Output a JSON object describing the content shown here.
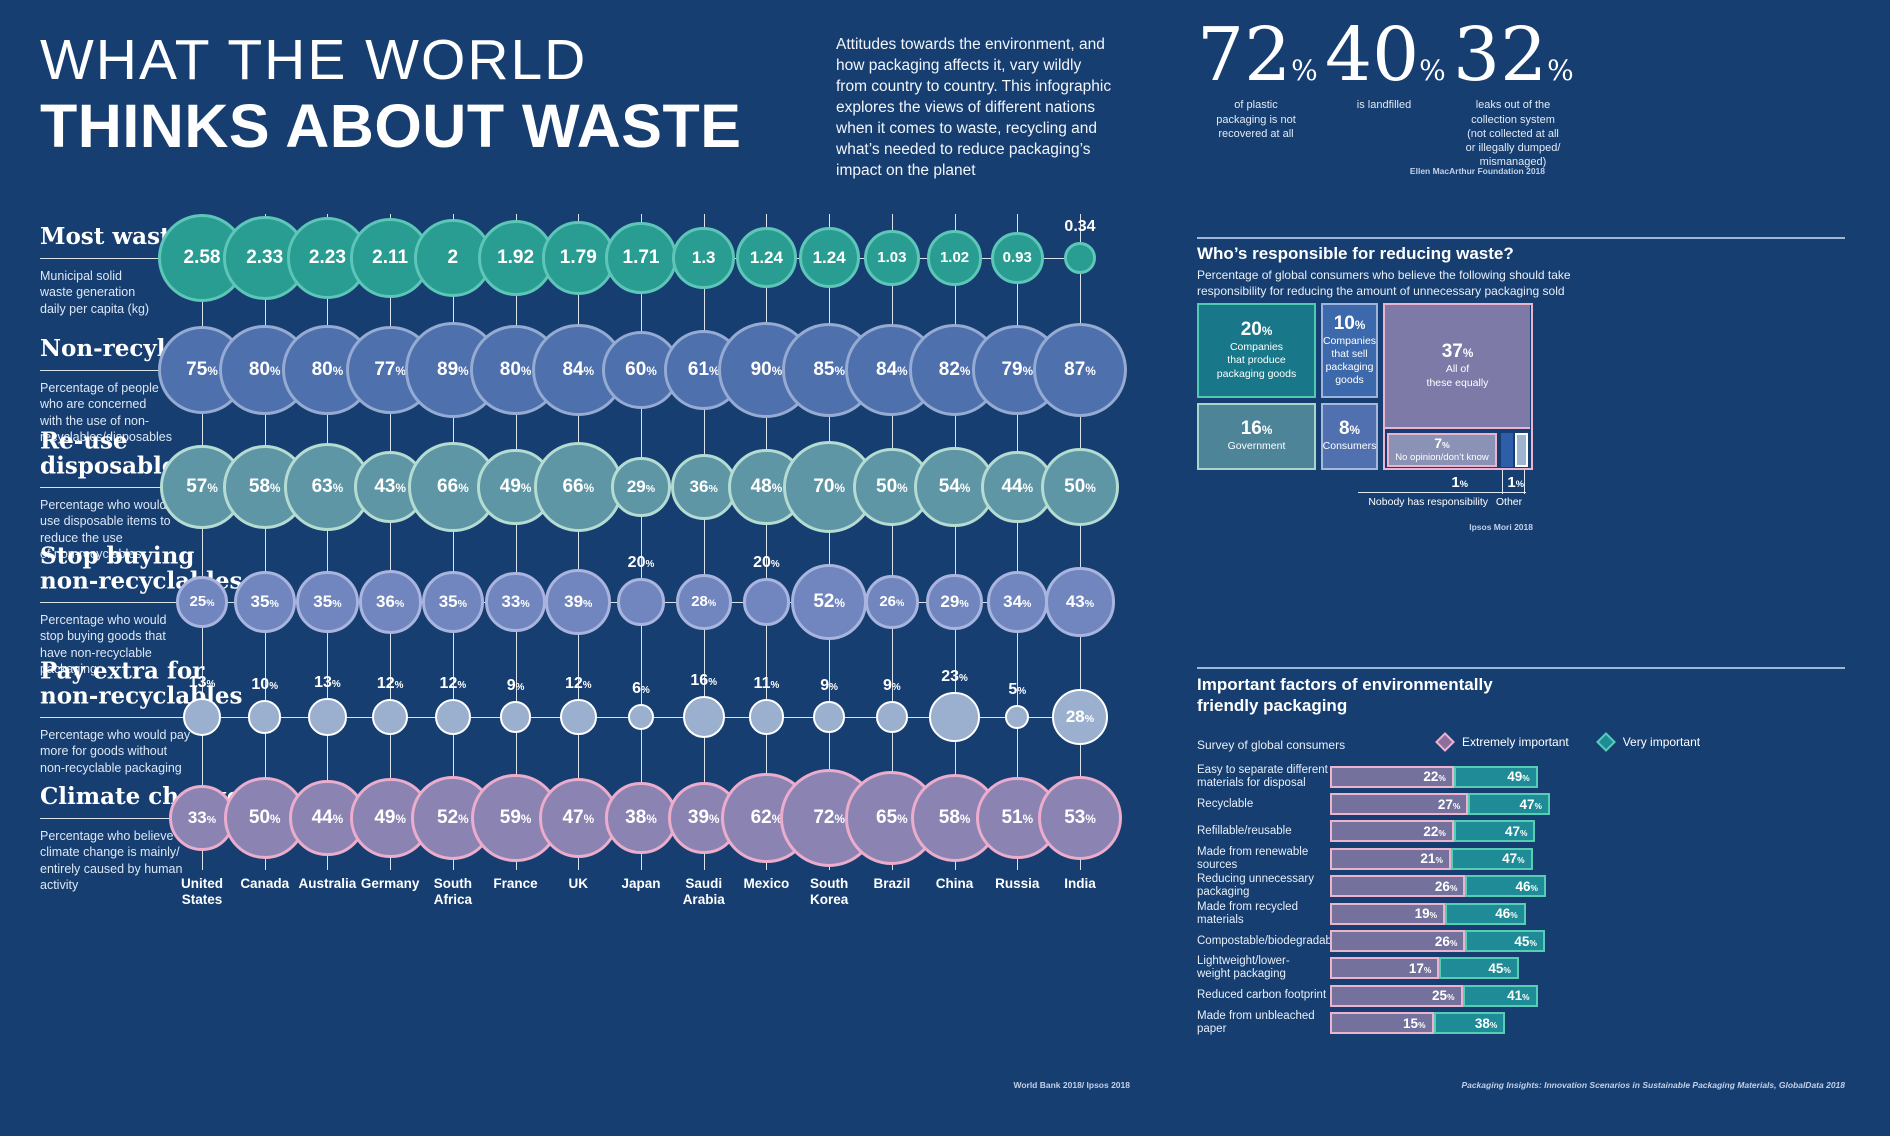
{
  "title": {
    "line1": "WHAT THE WORLD",
    "line2": "THINKS ABOUT WASTE"
  },
  "intro": "Attitudes towards the environment, and\nhow packaging affects it, vary wildly\nfrom country to country. This infographic\nexplores the views of different nations\nwhen it comes to waste, recycling and\nwhat’s needed to reduce packaging’s\nimpact on the planet",
  "theme": {
    "background": "#163E70",
    "text": "#FFFFFF",
    "divider": "#9FB6D6",
    "grid_line": "#FFFFFF"
  },
  "key_stats": {
    "source": "Ellen MacArthur Foundation 2018",
    "items": [
      {
        "value": "72",
        "unit": "%",
        "caption": "of plastic\npackaging is not\nrecovered at all"
      },
      {
        "value": "40",
        "unit": "%",
        "caption": "is landfilled"
      },
      {
        "value": "32",
        "unit": "%",
        "caption": "leaks out of the\ncollection system\n(not collected at all\nor illegally dumped/\nmismanaged)"
      }
    ]
  },
  "main_chart": {
    "source": "World Bank 2018/ Ipsos 2018"
  },
  "responsibility": {
    "title": "Who’s responsible for reducing waste?",
    "subtitle": "Percentage of global consumers who believe the following should take\nresponsibility for reducing the amount of unnecessary packaging sold",
    "source": "Ipsos Mori 2018"
  },
  "factors": {
    "title": "Important factors of environmentally\nfriendly packaging",
    "subtitle": "Survey of global consumers",
    "source": "Packaging Insights: Innovation Scenarios in Sustainable Packaging Materials, GlobalData 2018",
    "legend": [
      {
        "label": "Extremely important",
        "fill": "#8E6E9E",
        "border": "#ECB3CF"
      },
      {
        "label": "Very important",
        "fill": "#1E8B96",
        "border": "#58CDB5"
      }
    ]
  },
  "chart_data": [
    {
      "type": "scatter",
      "subtype": "bubble-matrix",
      "categories": [
        "United States",
        "Canada",
        "Australia",
        "Germany",
        "South Africa",
        "France",
        "UK",
        "Japan",
        "Saudi Arabia",
        "Mexico",
        "South Korea",
        "Brazil",
        "China",
        "Russia",
        "India"
      ],
      "series": [
        {
          "key": "most_waste",
          "name": "Most waste",
          "name_display": "Most waste",
          "description": "Municipal solid\nwaste generation\ndaily per capita (kg)",
          "unit": "",
          "values": [
            2.58,
            2.33,
            2.23,
            2.11,
            2,
            1.92,
            1.79,
            1.71,
            1.3,
            1.24,
            1.24,
            1.03,
            1.02,
            0.93,
            0.34
          ],
          "value_labels": [
            "2.58",
            "2.33",
            "2.23",
            "2.11",
            "2",
            "1.92",
            "1.79",
            "1.71",
            "1.3",
            "1.24",
            "1.24",
            "1.03",
            "1.02",
            "0.93",
            "0.34"
          ],
          "labels_above": [
            14
          ],
          "fill": "#2A9D92",
          "border": "#5EC6B8"
        },
        {
          "key": "non_recyclables",
          "name": "Non-recylables",
          "name_display": "Non-recylables",
          "description": "Percentage of people\nwho are concerned\nwith the use of non-\nrecyclables/disposables",
          "unit": "%",
          "values": [
            75,
            80,
            80,
            77,
            89,
            80,
            84,
            60,
            61,
            90,
            85,
            84,
            82,
            79,
            87
          ],
          "labels_above": [],
          "fill": "#4E70AC",
          "border": "#96ABD3"
        },
        {
          "key": "reuse_disposables",
          "name": "Re-use disposables",
          "name_display": "Re-use\ndisposables",
          "description": "Percentage who would re-\nuse disposable items to\nreduce the use\nof non-recyclables",
          "unit": "%",
          "values": [
            57,
            58,
            63,
            43,
            66,
            49,
            66,
            29,
            36,
            48,
            70,
            50,
            54,
            44,
            50
          ],
          "labels_above": [],
          "fill": "#5E96A6",
          "border": "#B5DCD2"
        },
        {
          "key": "stop_buying",
          "name": "Stop buying non-recyclables",
          "name_display": "Stop buying\nnon-recyclables",
          "description": "Percentage who would\nstop buying goods that\nhave non-recyclable\npackaging",
          "unit": "%",
          "values": [
            25,
            35,
            35,
            36,
            35,
            33,
            39,
            20,
            28,
            20,
            52,
            26,
            29,
            34,
            43
          ],
          "labels_above": [
            7,
            9
          ],
          "fill": "#7186BF",
          "border": "#A9B5DF"
        },
        {
          "key": "pay_extra",
          "name": "Pay extra for non-recyclables",
          "name_display": "Pay extra for\nnon-recyclables",
          "description": "Percentage who would pay\nmore for goods without\nnon-recyclable packaging",
          "unit": "%",
          "values": [
            13,
            10,
            13,
            12,
            12,
            9,
            12,
            6,
            16,
            11,
            9,
            9,
            23,
            5,
            28
          ],
          "labels_above": [
            0,
            1,
            2,
            3,
            4,
            5,
            6,
            7,
            8,
            9,
            10,
            11,
            12,
            13
          ],
          "fill": "#9BB0CF",
          "border": "#FFFFFF"
        },
        {
          "key": "climate_change",
          "name": "Climate change",
          "name_display": "Climate change",
          "description": "Percentage who believe\nclimate change is mainly/\nentirely caused by human\nactivity",
          "unit": "%",
          "values": [
            33,
            50,
            44,
            49,
            52,
            59,
            47,
            38,
            39,
            62,
            72,
            65,
            58,
            51,
            53
          ],
          "labels_above": [],
          "fill": "#8B84B3",
          "border": "#ECACCC"
        }
      ]
    },
    {
      "type": "pie",
      "subtype": "treemap",
      "title": "Who’s responsible for reducing waste?",
      "slices": [
        {
          "key": "produce",
          "value": 20,
          "label": "Companies\nthat produce\npackaging goods",
          "fill": "#187788",
          "border": "#4FCBB1"
        },
        {
          "key": "sell",
          "value": 10,
          "label": "Companies\nthat sell\npackaging\ngoods",
          "fill": "#3C68AC",
          "border": "#9DB3DB"
        },
        {
          "key": "government",
          "value": 16,
          "label": "Government",
          "fill": "#4E8497",
          "border": "#A8D5CC"
        },
        {
          "key": "consumers",
          "value": 8,
          "label": "Consumers",
          "fill": "#5170B0",
          "border": "#A8B8DC"
        },
        {
          "key": "equally",
          "value": 37,
          "label": "All of\nthese equally",
          "fill": "#7D7AA8",
          "border": "#ECB3CF"
        },
        {
          "key": "noopinion",
          "value": 7,
          "label": "No opinion/don’t know",
          "fill": "#8A92B5",
          "border": "#ECB3CF"
        },
        {
          "key": "nobody",
          "value": 1,
          "label": "Nobody has responsibility",
          "fill": "#2E5EA8",
          "border": "#ECB3CF"
        },
        {
          "key": "other",
          "value": 1,
          "label": "Other",
          "fill": "#9EB5CF",
          "border": "#FFFFFF"
        }
      ]
    },
    {
      "type": "bar",
      "subtype": "paired-horizontal",
      "title": "Important factors of environmentally friendly packaging",
      "categories": [
        "Easy to separate different\nmaterials for disposal",
        "Recyclable",
        "Refillable/reusable",
        "Made from renewable sources",
        "Reducing unnecessary\npackaging",
        "Made from recycled materials",
        "Compostable/biodegradable",
        "Lightweight/lower-\nweight packaging",
        "Reduced carbon footprint",
        "Made from unbleached paper"
      ],
      "series": [
        {
          "name": "Extremely important",
          "values": [
            22,
            27,
            22,
            21,
            26,
            19,
            26,
            17,
            25,
            15
          ]
        },
        {
          "name": "Very important",
          "values": [
            49,
            47,
            47,
            47,
            46,
            46,
            45,
            45,
            41,
            38
          ]
        }
      ],
      "colors": {
        "extremely_fill": "#74729C",
        "extremely_border": "#ECB3CF",
        "very_fill": "#1E8B96",
        "very_border": "#58CDB5"
      }
    }
  ]
}
